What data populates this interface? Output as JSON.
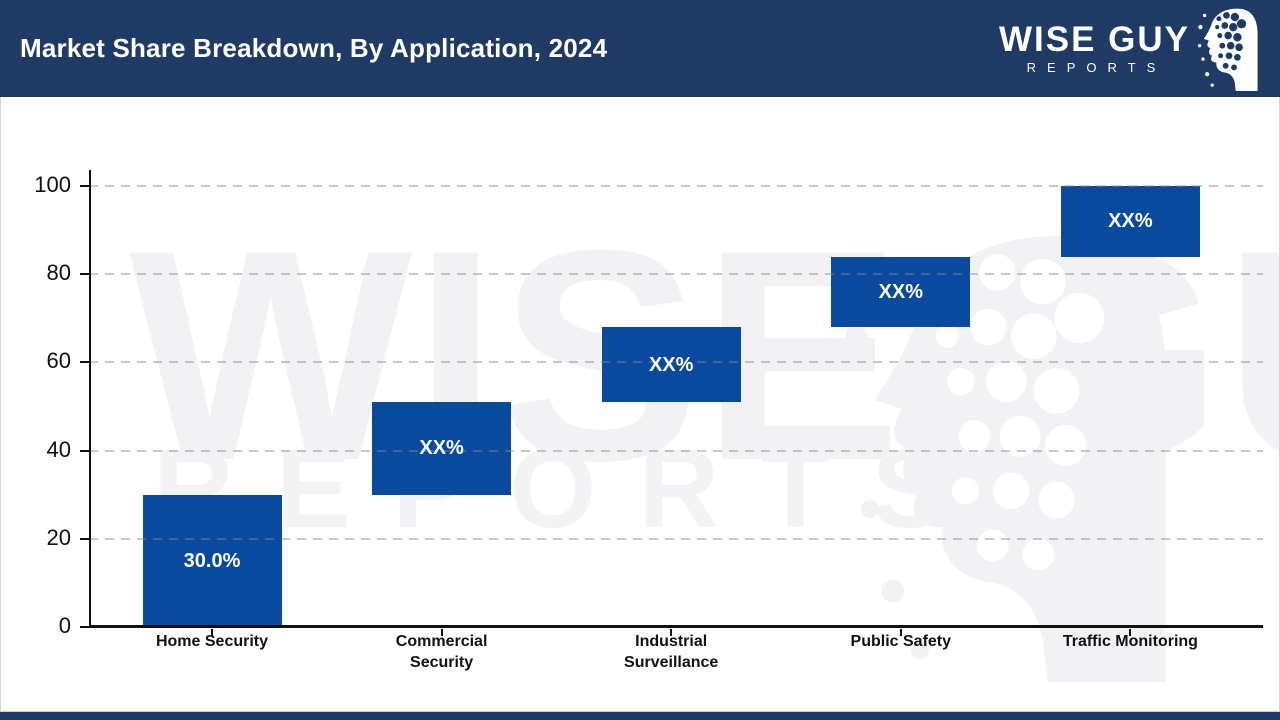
{
  "header": {
    "title": "Market Share Breakdown, By Application, 2024",
    "logo": {
      "line1": "WISE GUY",
      "line2": "REPORTS"
    }
  },
  "watermark": {
    "line1": "WISE GUY",
    "line2": "REPORTS"
  },
  "chart_data": {
    "type": "bar",
    "subtype": "waterfall",
    "title": "Market Share Breakdown, By Application, 2024",
    "categories": [
      "Home Security",
      "Commercial\nSecurity",
      "Industrial\nSurveillance",
      "Public Safety",
      "Traffic Monitoring"
    ],
    "segments": [
      {
        "category": "Home Security",
        "start": 0,
        "end": 30,
        "value": 30,
        "label": "30.0%"
      },
      {
        "category": "Commercial\nSecurity",
        "start": 30,
        "end": 51,
        "value": 21,
        "label": "XX%"
      },
      {
        "category": "Industrial\nSurveillance",
        "start": 51,
        "end": 68,
        "value": 17,
        "label": "XX%"
      },
      {
        "category": "Public Safety",
        "start": 68,
        "end": 84,
        "value": 16,
        "label": "XX%"
      },
      {
        "category": "Traffic Monitoring",
        "start": 84,
        "end": 100,
        "value": 16,
        "label": "XX%"
      }
    ],
    "yticks": [
      0,
      20,
      40,
      60,
      80,
      100
    ],
    "ylim": [
      0,
      100
    ],
    "xlabel": "",
    "ylabel": "",
    "grid": "dashed-horizontal",
    "legend": "none",
    "bar_color": "#0a4a9e",
    "bar_label_color": "#ffffff"
  },
  "colors": {
    "header_bg": "#1f3a64",
    "footer_bg": "#1f3a64",
    "axis": "#111111",
    "watermark": "#f2f2f5",
    "grid": "#9a9a9a"
  }
}
